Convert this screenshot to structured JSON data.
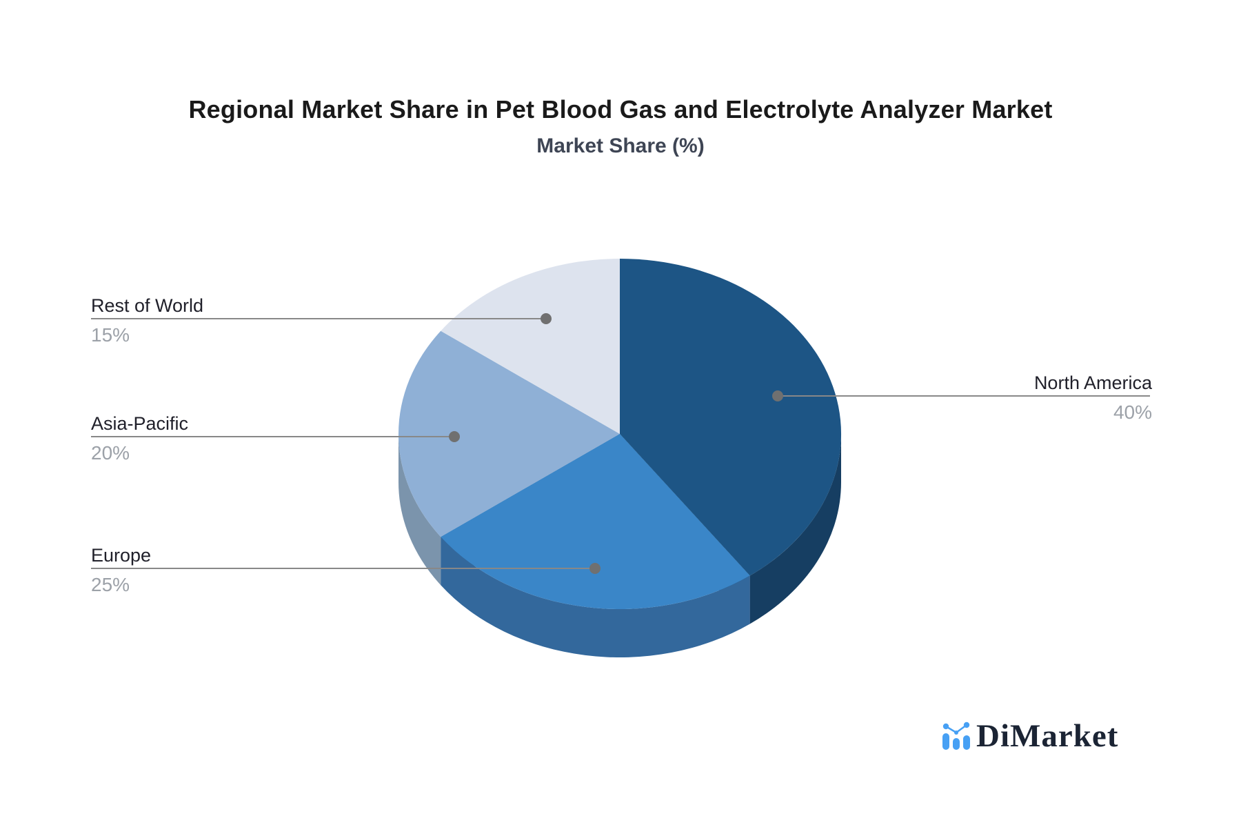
{
  "title": "Regional Market Share in Pet Blood Gas and Electrolyte Analyzer Market",
  "subtitle": "Market Share (%)",
  "labels": [
    {
      "name": "North America",
      "pct": "40%"
    },
    {
      "name": "Europe",
      "pct": "25%"
    },
    {
      "name": "Asia-Pacific",
      "pct": "20%"
    },
    {
      "name": "Rest of World",
      "pct": "15%"
    }
  ],
  "logo": {
    "text": "DiMarket"
  },
  "colors": {
    "background": "#ffffff",
    "title": "#1a1a1a",
    "subtitle": "#3e4554",
    "category_label": "#20202a",
    "percent_label": "#9ca1a8",
    "leader": "#888888",
    "leader_dot": "#707070",
    "logo_icon": "#47a0f4",
    "logo_text": "#1b2434"
  },
  "chart_data": {
    "type": "pie",
    "style": "3d",
    "title": "Regional Market Share in Pet Blood Gas and Electrolyte Analyzer Market",
    "subtitle": "Market Share (%)",
    "unit": "%",
    "start_angle_deg": 0,
    "direction": "clockwise",
    "legend_position": "outside-leader-labels",
    "categories": [
      "North America",
      "Europe",
      "Asia-Pacific",
      "Rest of World"
    ],
    "values": [
      40,
      25,
      20,
      15
    ],
    "slice_colors": [
      "#1d5585",
      "#3a86c8",
      "#8fb0d6",
      "#dde3ee"
    ],
    "side_colors": [
      "#163e62",
      "#33689c",
      "#7b94ac",
      "#b9c3d6"
    ]
  }
}
